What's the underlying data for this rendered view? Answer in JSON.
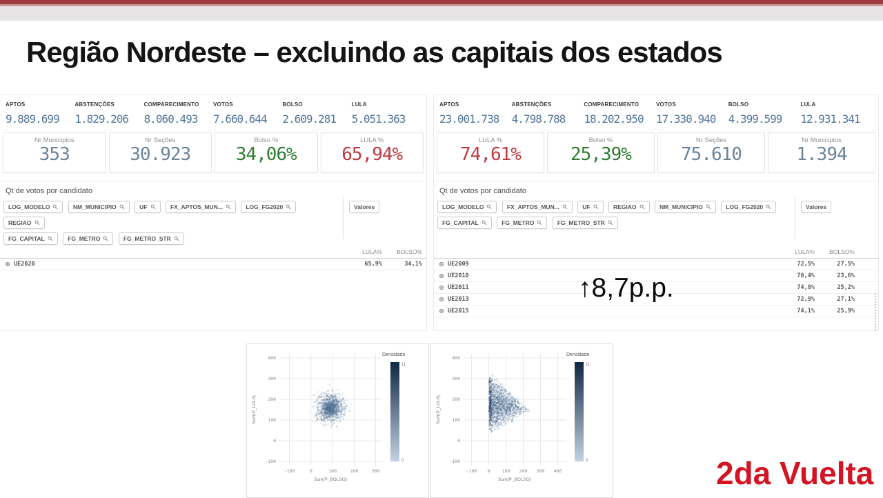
{
  "page": {
    "title": "Região Nordeste – excluindo as capitais dos estados",
    "annotation": "↑8,7p.p.",
    "round_label": "2da Vuelta"
  },
  "colors": {
    "top_bar": "#9d3b40",
    "kpi_blue": "#54759a",
    "positive_green": "#2f7d33",
    "lula_red": "#c13a3f",
    "round_red": "#d31423"
  },
  "icons": {
    "expand": "⊕"
  },
  "panels": [
    {
      "id": "UE2020",
      "kpis": [
        {
          "label": "APTOS",
          "value": "9.889.699"
        },
        {
          "label": "ABSTENÇÕES",
          "value": "1.829.206"
        },
        {
          "label": "COMPARECIMENTO",
          "value": "8.060.493"
        },
        {
          "label": "VOTOS",
          "value": "7.660.644"
        },
        {
          "label": "BOLSO",
          "value": "2.609.281"
        },
        {
          "label": "LULA",
          "value": "5.051.363"
        }
      ],
      "cards": [
        {
          "label": "Nr Municipios",
          "value": "353",
          "tone": "neutral"
        },
        {
          "label": "Nr Seções",
          "value": "30.923",
          "tone": "neutral"
        },
        {
          "label": "Bolso %",
          "value": "34,06%",
          "tone": "green"
        },
        {
          "label": "LULA %",
          "value": "65,94%",
          "tone": "red"
        }
      ],
      "table": {
        "title": "Qt de votos por candidato",
        "filters_row1": [
          "LOG_MODELO",
          "NM_MUNICIPIO",
          "UF",
          "FX_APTOS_MUN...",
          "LOG_FG2020",
          "REGIAO"
        ],
        "filters_row2": [
          "FG_CAPITAL",
          "FG_METRO",
          "FG_METRO_STR"
        ],
        "values_label": "Valores",
        "columns": [
          "LULA%",
          "BOLSO%"
        ],
        "rows": [
          {
            "label": "UE2020",
            "lula": "65,9%",
            "bolso": "34,1%"
          }
        ]
      }
    },
    {
      "id": "UE2009-UE2015",
      "kpis": [
        {
          "label": "APTOS",
          "value": "23.001.738"
        },
        {
          "label": "ABSTENÇÕES",
          "value": "4.798.788"
        },
        {
          "label": "COMPARECIMENTO",
          "value": "18.202.950"
        },
        {
          "label": "VOTOS",
          "value": "17.330.940"
        },
        {
          "label": "BOLSO",
          "value": "4.399.599"
        },
        {
          "label": "LULA",
          "value": "12.931.341"
        }
      ],
      "cards": [
        {
          "label": "LULA %",
          "value": "74,61%",
          "tone": "red"
        },
        {
          "label": "Bolso %",
          "value": "25,39%",
          "tone": "green"
        },
        {
          "label": "Nr Seções",
          "value": "75.610",
          "tone": "neutral"
        },
        {
          "label": "Nr Municipios",
          "value": "1.394",
          "tone": "neutral"
        }
      ],
      "table": {
        "title": "Qt de votos por candidato",
        "filters_row1": [
          "LOG_MODELO",
          "FX_APTOS_MUN...",
          "UF",
          "REGIAO",
          "NM_MUNICIPIO",
          "LOG_FG2020"
        ],
        "filters_row2": [
          "FG_CAPITAL",
          "FG_METRO",
          "FG_METRO_STR"
        ],
        "values_label": "Valores",
        "columns": [
          "LULA%",
          "BOLSO%"
        ],
        "rows": [
          {
            "label": "UE2009",
            "lula": "72,5%",
            "bolso": "27,5%"
          },
          {
            "label": "UE2010",
            "lula": "76,4%",
            "bolso": "23,6%"
          },
          {
            "label": "UE2011",
            "lula": "74,8%",
            "bolso": "25,2%"
          },
          {
            "label": "UE2013",
            "lula": "72,9%",
            "bolso": "27,1%"
          },
          {
            "label": "UE2015",
            "lula": "74,1%",
            "bolso": "25,9%"
          }
        ]
      }
    }
  ],
  "chart_data": [
    {
      "type": "scatter",
      "panel": "UE2020",
      "title": "",
      "xlabel": "Sum(P_BOLSO)",
      "ylabel": "Sum(P_LULA)",
      "xlim": [
        -150,
        330
      ],
      "ylim": [
        -120,
        420
      ],
      "xticks": [
        -100,
        0,
        100,
        200,
        300
      ],
      "yticks": [
        -100,
        0,
        100,
        200,
        300,
        400
      ],
      "grid": true,
      "legend": {
        "title": "Densidade",
        "max": 11,
        "min": 0,
        "color_high": "#0f2742",
        "color_low": "#c3d2e4",
        "position": "right"
      },
      "cloud": {
        "shape": "blob",
        "seed": 7,
        "count": 1700,
        "x_extent": [
          -30,
          235
        ],
        "y_extent": [
          25,
          300
        ],
        "dense_region": {
          "x": [
            20,
            130
          ],
          "y": [
            110,
            220
          ]
        },
        "polygon": [
          [
            -15,
            55
          ],
          [
            -30,
            165
          ],
          [
            20,
            290
          ],
          [
            110,
            295
          ],
          [
            195,
            235
          ],
          [
            235,
            150
          ],
          [
            150,
            55
          ],
          [
            60,
            30
          ]
        ]
      }
    },
    {
      "type": "scatter",
      "panel": "UE2009-UE2015",
      "title": "",
      "xlabel": "Sum(P_BOLSO)",
      "ylabel": "Sum(P_LULA)",
      "xlim": [
        -150,
        450
      ],
      "ylim": [
        -120,
        420
      ],
      "xticks": [
        -100,
        0,
        100,
        200,
        300,
        400
      ],
      "yticks": [
        -100,
        0,
        100,
        200,
        300,
        400
      ],
      "grid": true,
      "legend": {
        "title": "Densidade",
        "max": 11,
        "min": 0,
        "color_high": "#0f2742",
        "color_low": "#c3d2e4",
        "position": "right"
      },
      "cloud": {
        "shape": "wedge",
        "seed": 13,
        "count": 2000,
        "x_extent": [
          0,
          245
        ],
        "y_extent": [
          20,
          335
        ],
        "dense_region": {
          "x": [
            0,
            60
          ],
          "y": [
            100,
            280
          ]
        },
        "triangle": [
          [
            2,
            20
          ],
          [
            2,
            335
          ],
          [
            245,
            150
          ]
        ]
      }
    }
  ]
}
